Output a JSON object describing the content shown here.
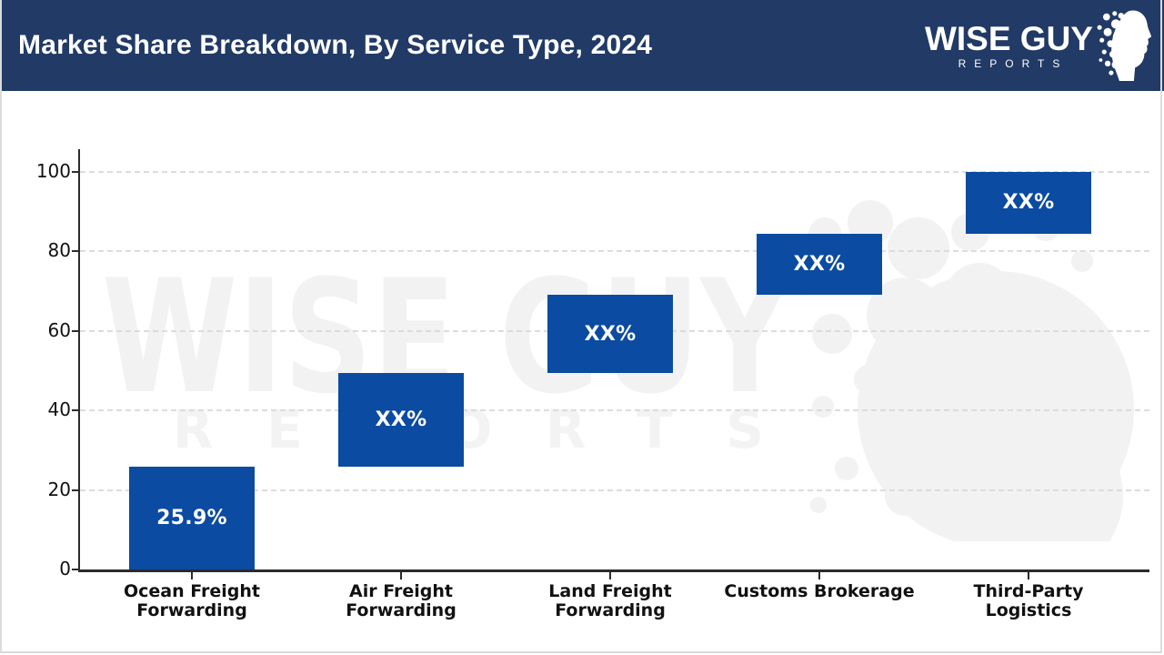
{
  "header": {
    "title": "Market Share Breakdown, By Service Type, 2024",
    "logo": {
      "name": "WISE GUY",
      "subtitle": "REPORTS"
    }
  },
  "watermark": {
    "line1": "WISE GUY",
    "line2": "REPORTS"
  },
  "chart_data": {
    "type": "bar",
    "subtype": "waterfall",
    "title": "Market Share Breakdown, By Service Type, 2024",
    "xlabel": "",
    "ylabel": "",
    "ylim": [
      0,
      100
    ],
    "yticks": [
      0,
      20,
      40,
      60,
      80,
      100
    ],
    "grid": "horizontal-dashed",
    "legend": null,
    "bar_color": "#0b4ba1",
    "categories": [
      "Ocean Freight Forwarding",
      "Air Freight Forwarding",
      "Land Freight Forwarding",
      "Customs Brokerage",
      "Third-Party Logistics"
    ],
    "category_label_lines": [
      [
        "Ocean Freight",
        "Forwarding"
      ],
      [
        "Air Freight",
        "Forwarding"
      ],
      [
        "Land Freight",
        "Forwarding"
      ],
      [
        "Customs Brokerage"
      ],
      [
        "Third-Party",
        "Logistics"
      ]
    ],
    "bars": [
      {
        "label": "Ocean Freight Forwarding",
        "start": 0,
        "end": 25.9,
        "value_label": "25.9%"
      },
      {
        "label": "Air Freight Forwarding",
        "start": 25.9,
        "end": 49.5,
        "value_label": "XX%"
      },
      {
        "label": "Land Freight Forwarding",
        "start": 49.5,
        "end": 69.0,
        "value_label": "XX%"
      },
      {
        "label": "Customs Brokerage",
        "start": 69.2,
        "end": 84.5,
        "value_label": "XX%"
      },
      {
        "label": "Third-Party Logistics",
        "start": 84.5,
        "end": 100,
        "value_label": "XX%"
      }
    ]
  },
  "colors": {
    "header_bg": "#213a66",
    "bar": "#0b4ba1",
    "grid": "#dcdcdc",
    "axis": "#2b2b2b",
    "watermark": "#f2f2f2"
  }
}
